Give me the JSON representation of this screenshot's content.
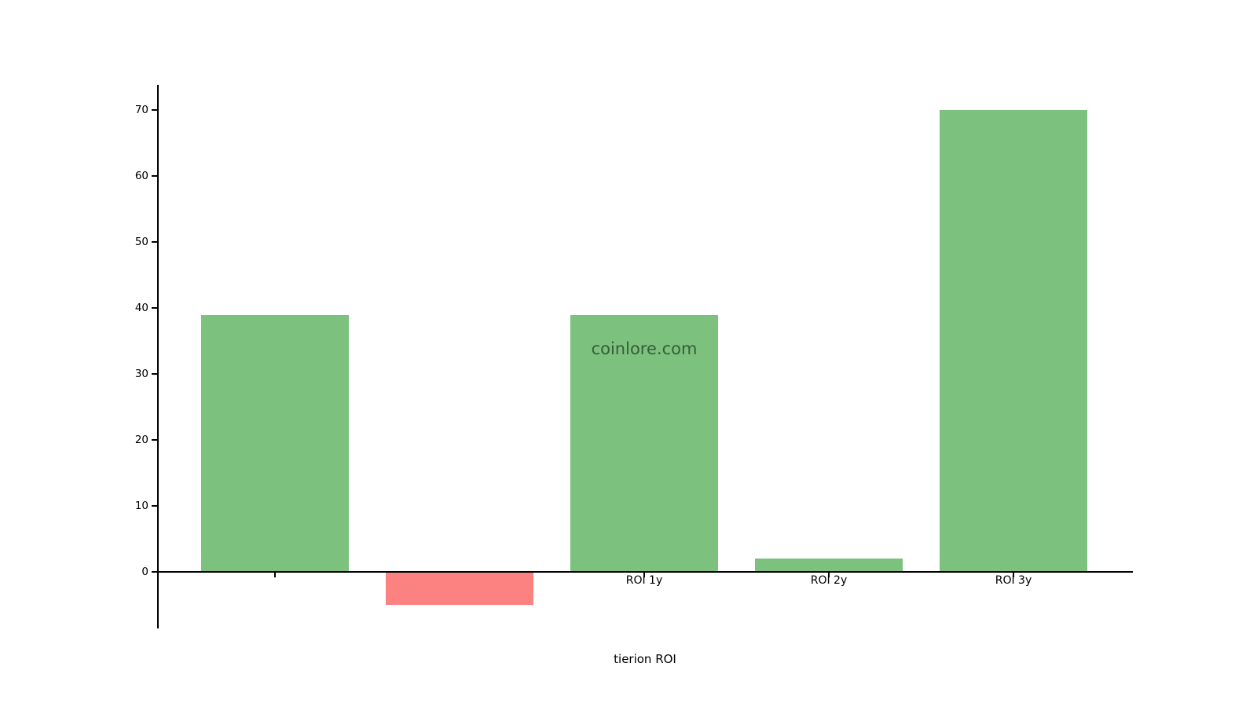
{
  "page": {
    "background": "#ffffff"
  },
  "chart_data": {
    "type": "bar",
    "title": "",
    "xlabel": "tierion ROI",
    "ylabel": "",
    "categories": [
      "",
      "",
      "ROI 1y",
      "ROI 2y",
      "ROI 3y"
    ],
    "values": [
      39,
      -5,
      39,
      2,
      70
    ],
    "bar_colors_rule": "green if value >= 0 else red",
    "yticks": [
      0,
      10,
      20,
      30,
      40,
      50,
      60,
      70
    ],
    "ylim": [
      -8.75,
      73.75
    ],
    "grid": false,
    "legend": false,
    "watermark": "coinlore.com",
    "colors": {
      "positive": "#7CC17E",
      "negative": "#FC8282",
      "axis": "#000000",
      "tick_label": "#000000"
    }
  }
}
